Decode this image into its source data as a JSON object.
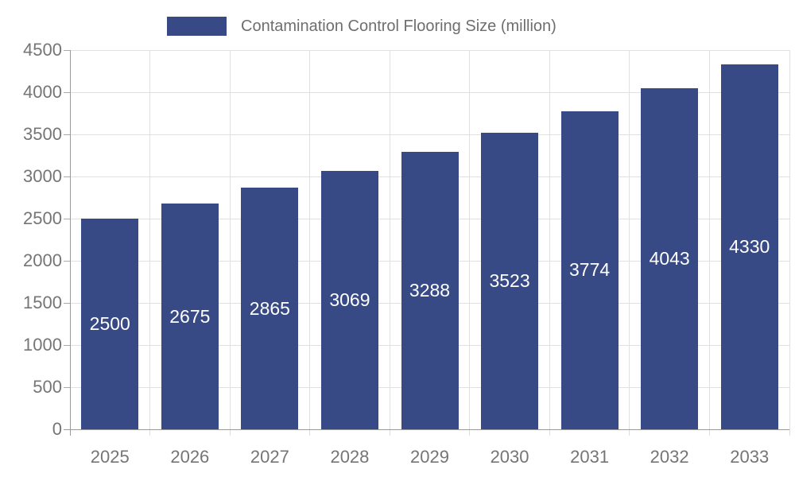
{
  "legend": {
    "label": "Contamination Control Flooring Size (million)"
  },
  "colors": {
    "bar": "#384a85",
    "grid": "#e0e0e0",
    "axis_line": "#999999",
    "y_tick": "#aaaaaa",
    "x_tick": "#dddddd",
    "axis_label": "#757575",
    "value_label": "#ffffff",
    "legend_text": "#6e6e6e",
    "background": "#ffffff"
  },
  "chart_data": {
    "type": "bar",
    "title": "Contamination Control Flooring Size (million)",
    "categories": [
      "2025",
      "2026",
      "2027",
      "2028",
      "2029",
      "2030",
      "2031",
      "2032",
      "2033"
    ],
    "values": [
      2500,
      2675,
      2865,
      3069,
      3288,
      3523,
      3774,
      4043,
      4330
    ],
    "xlabel": "",
    "ylabel": "",
    "ylim": [
      0,
      4500
    ],
    "ytick_step": 500,
    "grid": true,
    "legend_position": "top",
    "value_labels": "inside-center"
  }
}
